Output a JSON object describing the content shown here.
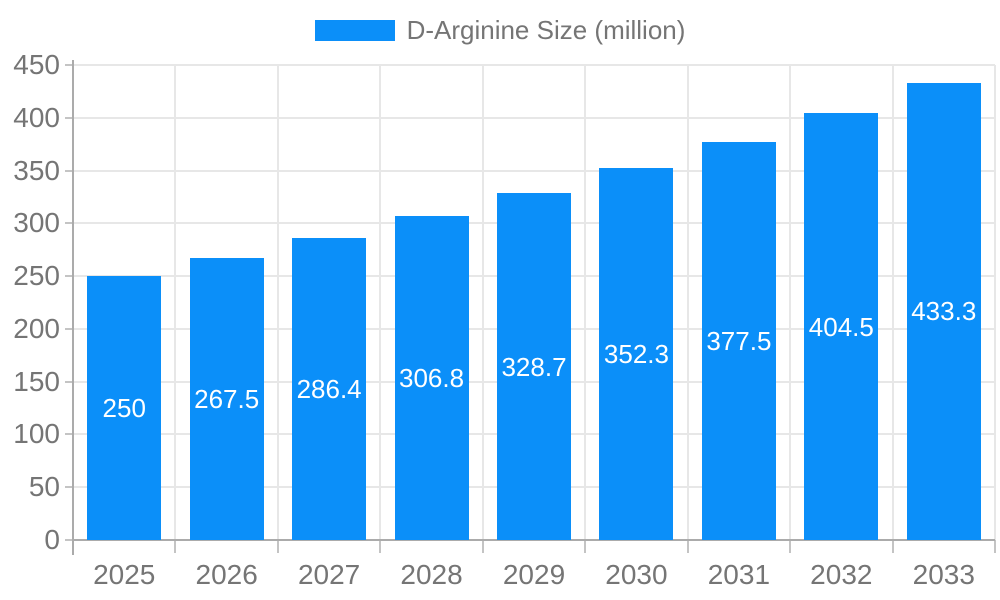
{
  "legend": {
    "label": "D-Arginine Size (million)"
  },
  "colors": {
    "bar": "#0b8ff9",
    "bar_label": "#ffffff",
    "axis_text": "#757575",
    "legend_text": "#757575",
    "axis_line": "#ababab",
    "grid_line": "#e7e7e7",
    "tick": "#c4c4c4",
    "background": "#ffffff"
  },
  "chart_data": {
    "type": "bar",
    "title": "D-Arginine Size (million)",
    "series_name": "D-Arginine Size (million)",
    "categories": [
      "2025",
      "2026",
      "2027",
      "2028",
      "2029",
      "2030",
      "2031",
      "2032",
      "2033"
    ],
    "values": [
      250,
      267.5,
      286.4,
      306.8,
      328.7,
      352.3,
      377.5,
      404.5,
      433.3
    ],
    "bar_labels": [
      "250",
      "267.5",
      "286.4",
      "306.8",
      "328.7",
      "352.3",
      "377.5",
      "404.5",
      "433.3"
    ],
    "xlabel": "",
    "ylabel": "",
    "ylim": [
      0,
      450
    ],
    "y_ticks": [
      0,
      50,
      100,
      150,
      200,
      250,
      300,
      350,
      400,
      450
    ],
    "grid": true,
    "legend_position": "top",
    "bar_value_labels": "inside-center"
  }
}
